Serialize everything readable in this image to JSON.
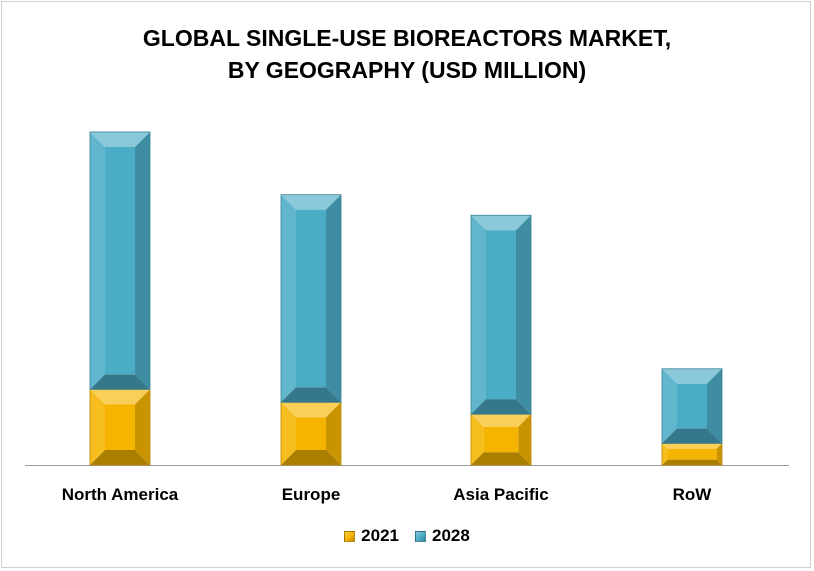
{
  "chart_data": {
    "type": "bar",
    "stacked": true,
    "title_line1": "GLOBAL SINGLE-USE BIOREACTORS MARKET,",
    "title_line2": "BY GEOGRAPHY (USD MILLION)",
    "categories": [
      "North America",
      "Europe",
      "Asia Pacific",
      "RoW"
    ],
    "series": [
      {
        "name": "2021",
        "color": "#F5B400",
        "values": [
          70,
          58,
          47,
          20
        ]
      },
      {
        "name": "2028",
        "color": "#4BACC6",
        "values": [
          238,
          192,
          184,
          69
        ]
      }
    ],
    "ylim": [
      0,
      320
    ],
    "grid": false,
    "legend_position": "bottom"
  }
}
